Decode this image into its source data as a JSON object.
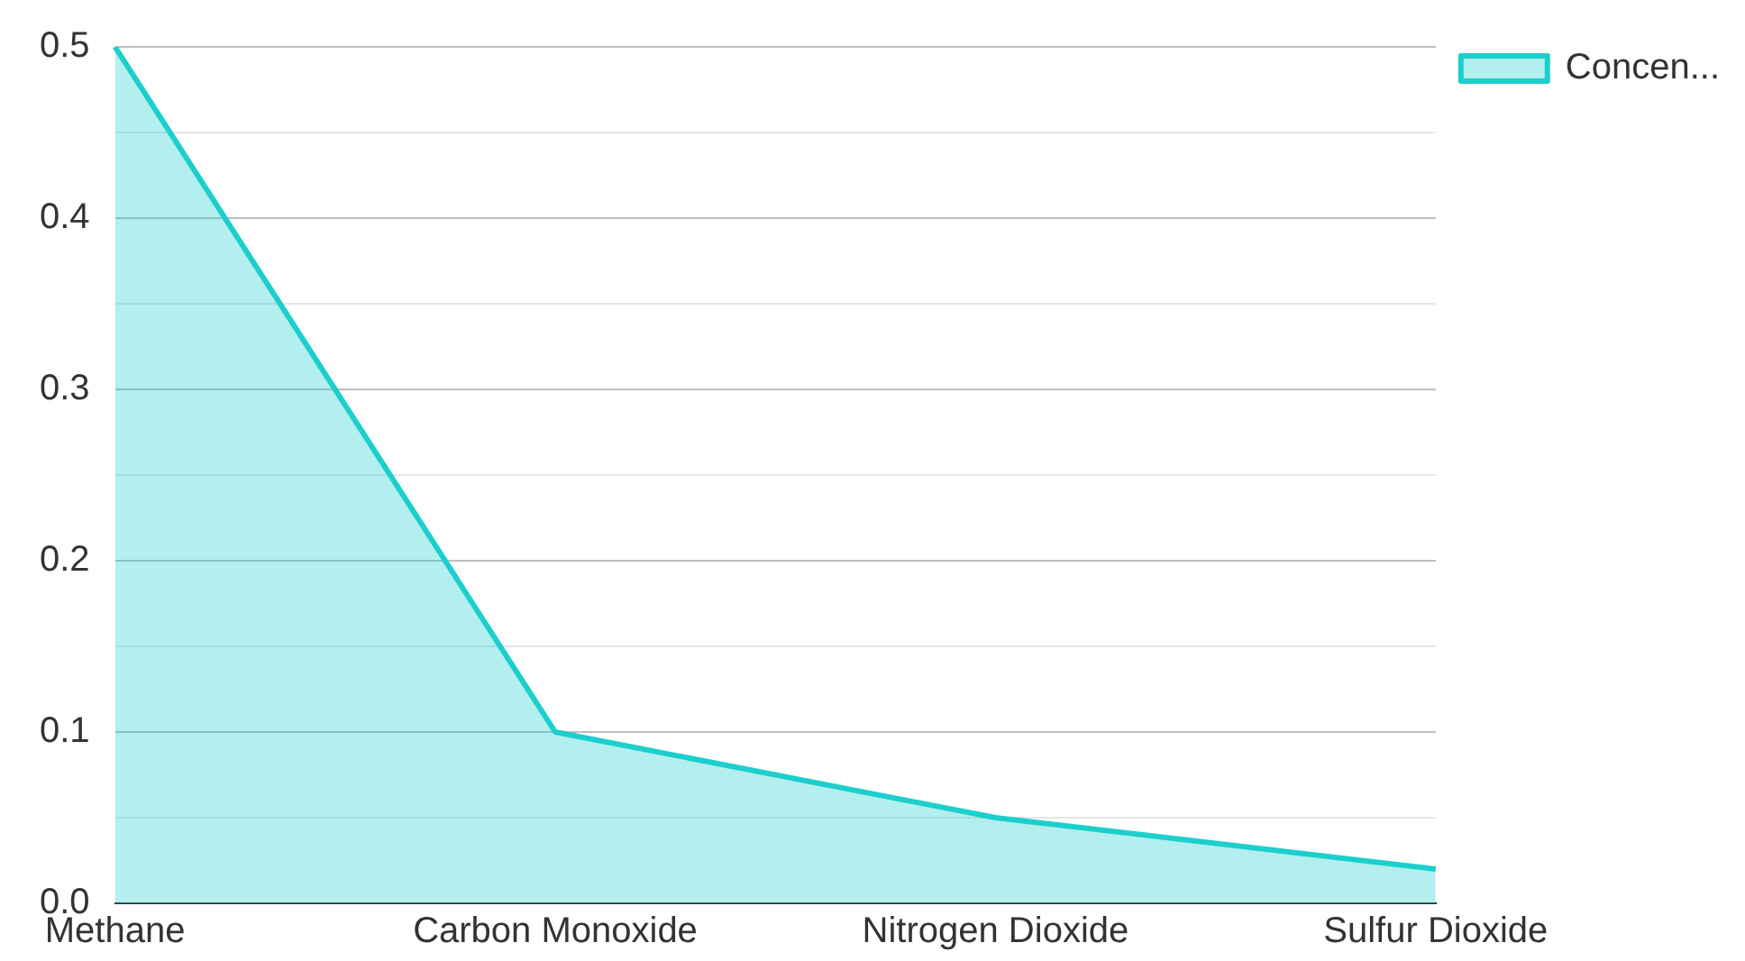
{
  "chart_data": {
    "type": "area",
    "categories": [
      "Methane",
      "Carbon Monoxide",
      "Nitrogen Dioxide",
      "Sulfur Dioxide"
    ],
    "series": [
      {
        "name": "Concen...",
        "color": "#1ccfcc",
        "values": [
          0.5,
          0.1,
          0.05,
          0.02
        ]
      }
    ],
    "ylim": [
      0,
      0.5
    ],
    "yticks": [
      {
        "value": 0,
        "label": "0.0"
      },
      {
        "value": 0.05,
        "label": null
      },
      0.1,
      {
        "value": 0.15,
        "label": null
      },
      0.2,
      {
        "value": 0.25,
        "label": null
      },
      0.3,
      {
        "value": 0.35,
        "label": null
      },
      0.4,
      {
        "value": 0.45,
        "label": null
      },
      0.5
    ],
    "grid": "y",
    "legend": "top right"
  }
}
